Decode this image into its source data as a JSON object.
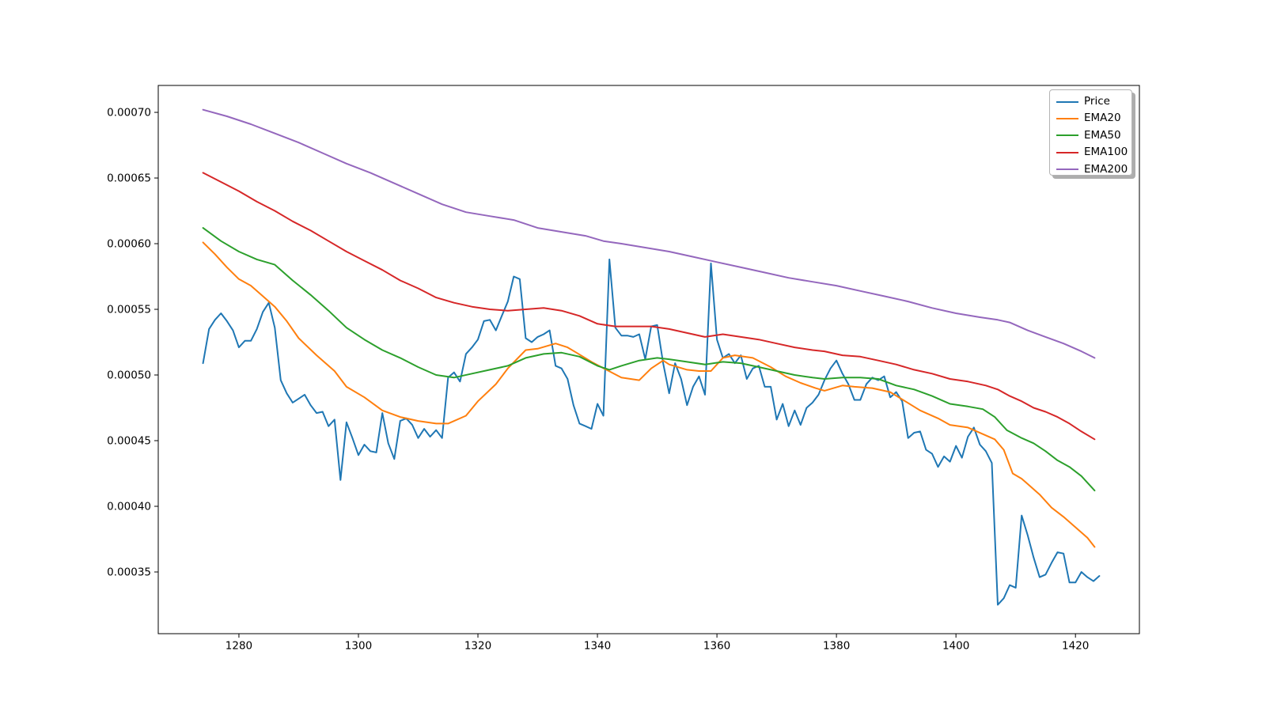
{
  "chart_data": {
    "type": "line",
    "title": "",
    "xlabel": "",
    "ylabel": "",
    "grid": false,
    "legend_position": "upper right",
    "xlim": [
      1266.5,
      1430.7
    ],
    "ylim": [
      0.000303,
      0.0007205
    ],
    "x_ticks": [
      1280,
      1300,
      1320,
      1340,
      1360,
      1380,
      1400,
      1420
    ],
    "x_tick_labels": [
      "1280",
      "1300",
      "1320",
      "1340",
      "1360",
      "1380",
      "1400",
      "1420"
    ],
    "y_ticks": [
      0.00035,
      0.0004,
      0.00045,
      0.0005,
      0.00055,
      0.0006,
      0.00065,
      0.0007
    ],
    "y_tick_labels": [
      "0.00035",
      "0.00040",
      "0.00045",
      "0.00050",
      "0.00055",
      "0.00060",
      "0.00065",
      "0.00070"
    ],
    "series": [
      {
        "name": "Price",
        "color": "#1f77b4",
        "x_start": 1274,
        "x_step": 1,
        "values": [
          0.000509,
          0.000535,
          0.000542,
          0.000547,
          0.000541,
          0.000534,
          0.000521,
          0.000526,
          0.000526,
          0.000535,
          0.000548,
          0.000555,
          0.000536,
          0.000496,
          0.000486,
          0.000479,
          0.000482,
          0.000485,
          0.000477,
          0.000471,
          0.000472,
          0.000461,
          0.000466,
          0.00042,
          0.000464,
          0.000452,
          0.000439,
          0.000447,
          0.000442,
          0.000441,
          0.000471,
          0.000448,
          0.000436,
          0.000465,
          0.000467,
          0.000462,
          0.000452,
          0.000459,
          0.000453,
          0.000458,
          0.000452,
          0.000498,
          0.000502,
          0.000495,
          0.000516,
          0.000521,
          0.000527,
          0.000541,
          0.000542,
          0.000534,
          0.000545,
          0.000556,
          0.000575,
          0.000573,
          0.000528,
          0.000525,
          0.000529,
          0.000531,
          0.000534,
          0.000507,
          0.000505,
          0.000497,
          0.000477,
          0.000463,
          0.000461,
          0.000459,
          0.000478,
          0.000469,
          0.000588,
          0.000536,
          0.00053,
          0.00053,
          0.000529,
          0.000531,
          0.000512,
          0.000537,
          0.000538,
          0.000509,
          0.000486,
          0.000509,
          0.000497,
          0.000477,
          0.000491,
          0.000499,
          0.000485,
          0.000585,
          0.000527,
          0.000513,
          0.000516,
          0.000509,
          0.000515,
          0.000497,
          0.000505,
          0.000507,
          0.000491,
          0.000491,
          0.000466,
          0.000478,
          0.000461,
          0.000473,
          0.000462,
          0.000475,
          0.000479,
          0.000485,
          0.000496,
          0.000505,
          0.000511,
          0.000501,
          0.000493,
          0.000481,
          0.000481,
          0.000493,
          0.000498,
          0.000496,
          0.000499,
          0.000483,
          0.000487,
          0.00048,
          0.000452,
          0.000456,
          0.000457,
          0.000443,
          0.00044,
          0.00043,
          0.000438,
          0.000434,
          0.000446,
          0.000437,
          0.000453,
          0.00046,
          0.000447,
          0.000442,
          0.000433,
          0.000325,
          0.00033,
          0.00034,
          0.000338,
          0.000393,
          0.000378,
          0.000361,
          0.000346,
          0.000348,
          0.000357,
          0.000365,
          0.000364,
          0.000342,
          0.000342,
          0.00035,
          0.000346,
          0.000343,
          0.000347
        ]
      },
      {
        "name": "EMA20",
        "color": "#ff7f0e",
        "x": [
          1274,
          1276,
          1278,
          1280,
          1282,
          1284,
          1286,
          1288,
          1290,
          1293,
          1296,
          1298,
          1301,
          1304,
          1307,
          1310,
          1313,
          1315,
          1318,
          1320,
          1323,
          1325,
          1328,
          1330,
          1333,
          1335,
          1336.5,
          1339,
          1341.5,
          1344,
          1347,
          1349,
          1351,
          1352,
          1355,
          1357,
          1359,
          1361,
          1363,
          1366,
          1369,
          1371.5,
          1374,
          1376.5,
          1378,
          1381,
          1383,
          1386,
          1389,
          1391.5,
          1394,
          1397,
          1399,
          1402,
          1404.5,
          1406.5,
          1408,
          1409.5,
          1411,
          1412,
          1414,
          1416,
          1418,
          1420,
          1422,
          1423.2
        ],
        "y": [
          0.000601,
          0.000592,
          0.000582,
          0.000573,
          0.000568,
          0.00056,
          0.000552,
          0.000541,
          0.000528,
          0.000515,
          0.000503,
          0.000491,
          0.000483,
          0.000473,
          0.000468,
          0.000465,
          0.000463,
          0.000463,
          0.000469,
          0.00048,
          0.000493,
          0.000505,
          0.000519,
          0.00052,
          0.000524,
          0.000521,
          0.000517,
          0.00051,
          0.000504,
          0.000498,
          0.000496,
          0.000505,
          0.000511,
          0.000508,
          0.000504,
          0.000503,
          0.000503,
          0.000513,
          0.000515,
          0.000513,
          0.000506,
          0.000499,
          0.000494,
          0.00049,
          0.000488,
          0.000492,
          0.000491,
          0.00049,
          0.000487,
          0.00048,
          0.000473,
          0.000467,
          0.000462,
          0.00046,
          0.000455,
          0.000451,
          0.000443,
          0.000425,
          0.000421,
          0.000417,
          0.000409,
          0.000399,
          0.000392,
          0.000384,
          0.000376,
          0.000369
        ]
      },
      {
        "name": "EMA50",
        "color": "#2ca02c",
        "x": [
          1274,
          1277,
          1280,
          1283,
          1286,
          1289,
          1292,
          1295,
          1298,
          1301,
          1304,
          1307,
          1310,
          1313,
          1316,
          1319,
          1322,
          1325,
          1328,
          1331,
          1334,
          1337,
          1340,
          1342,
          1344,
          1347,
          1350,
          1352,
          1355,
          1358,
          1361,
          1364,
          1367,
          1370,
          1373,
          1376,
          1378,
          1381,
          1384,
          1387,
          1390,
          1393,
          1396,
          1399,
          1402,
          1404.5,
          1406.5,
          1408.5,
          1411,
          1413,
          1415,
          1417,
          1419,
          1421,
          1423.2
        ],
        "y": [
          0.000612,
          0.000602,
          0.000594,
          0.000588,
          0.000584,
          0.000572,
          0.000561,
          0.000549,
          0.000536,
          0.000527,
          0.000519,
          0.000513,
          0.000506,
          0.0005,
          0.000498,
          0.000501,
          0.000504,
          0.000507,
          0.000513,
          0.000516,
          0.000517,
          0.000514,
          0.000507,
          0.000504,
          0.000507,
          0.000511,
          0.000513,
          0.000512,
          0.00051,
          0.000508,
          0.00051,
          0.000509,
          0.000506,
          0.000503,
          0.0005,
          0.000498,
          0.000497,
          0.000498,
          0.000498,
          0.000497,
          0.000492,
          0.000489,
          0.000484,
          0.000478,
          0.000476,
          0.000474,
          0.000468,
          0.000458,
          0.000452,
          0.000448,
          0.000442,
          0.000435,
          0.00043,
          0.000423,
          0.000412
        ]
      },
      {
        "name": "EMA100",
        "color": "#d62728",
        "x": [
          1274,
          1277,
          1280,
          1283,
          1286,
          1289,
          1292,
          1295,
          1298,
          1301,
          1304,
          1307,
          1310,
          1313,
          1316,
          1319,
          1322,
          1325,
          1328,
          1331,
          1334,
          1337,
          1340,
          1343,
          1346,
          1349,
          1352,
          1355,
          1358,
          1361,
          1364,
          1367,
          1370,
          1373,
          1376,
          1378,
          1381,
          1384,
          1387,
          1390,
          1393,
          1396,
          1399,
          1402,
          1405,
          1407,
          1409,
          1411,
          1413,
          1415,
          1417,
          1419,
          1421,
          1423.2
        ],
        "y": [
          0.000654,
          0.000647,
          0.00064,
          0.000632,
          0.000625,
          0.000617,
          0.00061,
          0.000602,
          0.000594,
          0.000587,
          0.00058,
          0.000572,
          0.000566,
          0.000559,
          0.000555,
          0.000552,
          0.00055,
          0.000549,
          0.00055,
          0.000551,
          0.000549,
          0.000545,
          0.000539,
          0.000537,
          0.000537,
          0.000537,
          0.000535,
          0.000532,
          0.000529,
          0.000531,
          0.000529,
          0.000527,
          0.000524,
          0.000521,
          0.000519,
          0.000518,
          0.000515,
          0.000514,
          0.000511,
          0.000508,
          0.000504,
          0.000501,
          0.000497,
          0.000495,
          0.000492,
          0.000489,
          0.000484,
          0.00048,
          0.000475,
          0.000472,
          0.000468,
          0.000463,
          0.000457,
          0.000451
        ]
      },
      {
        "name": "EMA200",
        "color": "#9467bd",
        "x": [
          1274,
          1278,
          1282,
          1286,
          1290,
          1294,
          1298,
          1302,
          1306,
          1310,
          1314,
          1318,
          1322,
          1326,
          1330,
          1334,
          1338,
          1341,
          1344,
          1348,
          1352,
          1356,
          1360,
          1364,
          1368,
          1372,
          1376,
          1380,
          1384,
          1388,
          1392,
          1396,
          1400,
          1404,
          1407,
          1409,
          1412,
          1415,
          1418,
          1421,
          1423.2
        ],
        "y": [
          0.000702,
          0.000697,
          0.000691,
          0.000684,
          0.000677,
          0.000669,
          0.000661,
          0.000654,
          0.000646,
          0.000638,
          0.00063,
          0.000624,
          0.000621,
          0.000618,
          0.000612,
          0.000609,
          0.000606,
          0.000602,
          0.0006,
          0.000597,
          0.000594,
          0.00059,
          0.000586,
          0.000582,
          0.000578,
          0.000574,
          0.000571,
          0.000568,
          0.000564,
          0.00056,
          0.000556,
          0.000551,
          0.000547,
          0.000544,
          0.000542,
          0.00054,
          0.000534,
          0.000529,
          0.000524,
          0.000518,
          0.000513
        ]
      }
    ],
    "legend_labels": [
      "Price",
      "EMA20",
      "EMA50",
      "EMA100",
      "EMA200"
    ]
  }
}
